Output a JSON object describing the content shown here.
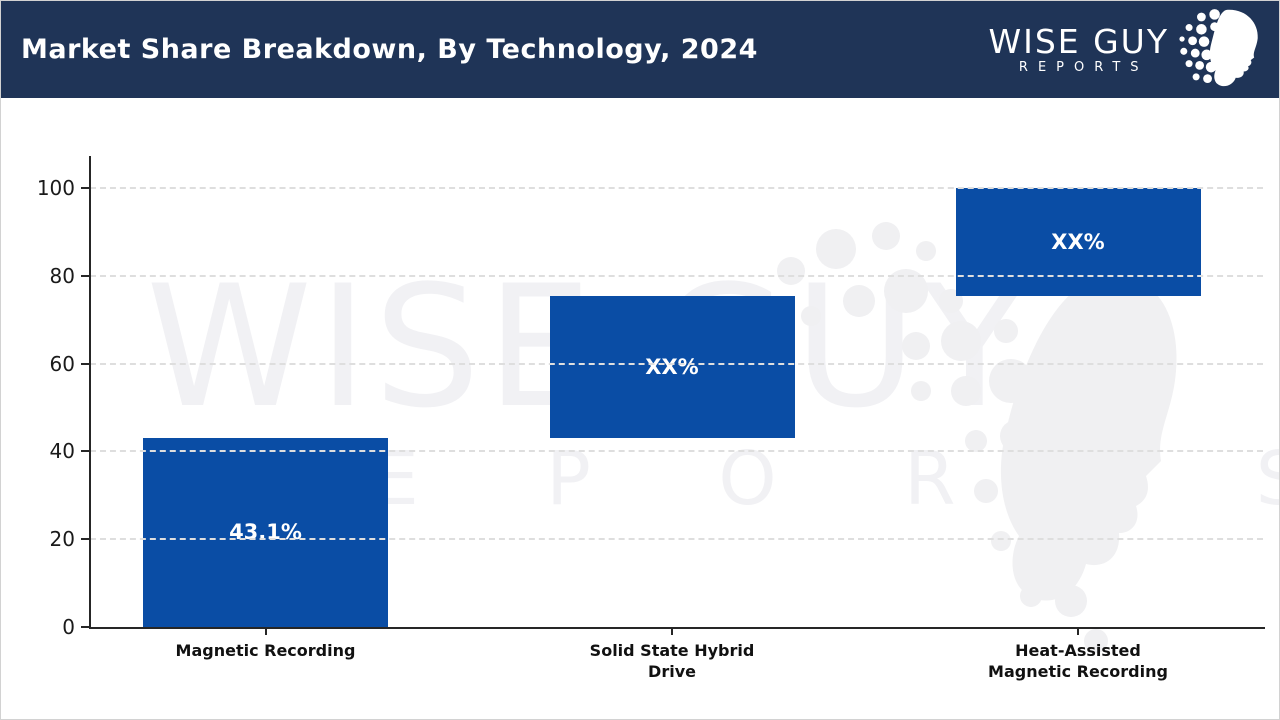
{
  "header": {
    "title": "Market Share Breakdown, By Technology, 2024",
    "bg_color": "#1f3457",
    "logo": {
      "line1": "WISE GUY",
      "line2": "REPORTS"
    }
  },
  "watermark": {
    "line1": "WISE GUY",
    "line2": "REPORTS"
  },
  "chart_data": {
    "type": "bar",
    "subtype": "waterfall-floating-bars",
    "title": "Market Share Breakdown, By Technology, 2024",
    "categories": [
      "Magnetic Recording",
      "Solid State Hybrid Drive",
      "Heat-Assisted Magnetic Recording"
    ],
    "category_display": [
      "Magnetic Recording",
      "Solid State Hybrid\nDrive",
      "Heat-Assisted\nMagnetic Recording"
    ],
    "segments": [
      {
        "category": "Magnetic Recording",
        "start": 0,
        "end": 43.1,
        "label": "43.1%"
      },
      {
        "category": "Solid State Hybrid Drive",
        "start": 43.1,
        "end": 75.5,
        "label": "XX%"
      },
      {
        "category": "Heat-Assisted Magnetic Recording",
        "start": 75.5,
        "end": 100,
        "label": "XX%"
      }
    ],
    "yticks": [
      0,
      20,
      40,
      60,
      80,
      100
    ],
    "ylim": [
      0,
      107
    ],
    "xlabel": "",
    "ylabel": "",
    "grid": "horizontal-dashed-over-bars",
    "bar_color": "#0a4da5",
    "bar_label_color": "#ffffff",
    "gridline_color": "#dedede",
    "axis_color": "#262626"
  }
}
